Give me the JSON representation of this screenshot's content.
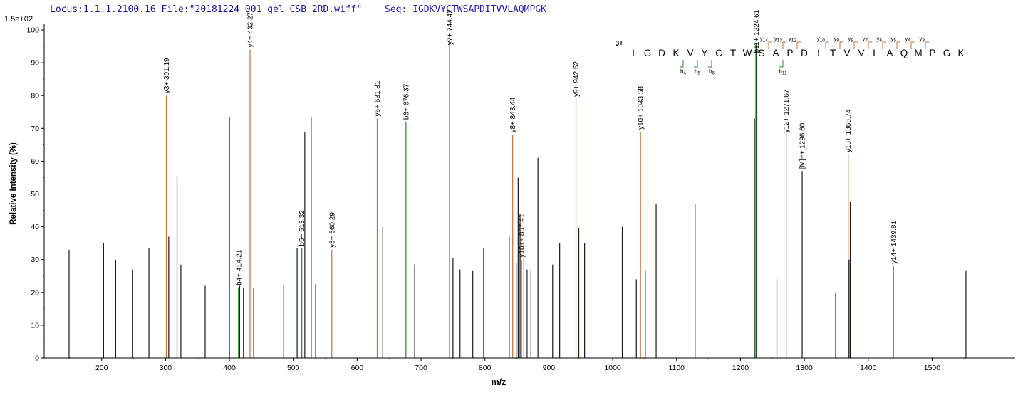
{
  "header": {
    "locus": "Locus:1.1.1.2100.16 File:\"20181224_001_gel_CSB_2RD.wiff\"",
    "seq_label": "Seq:",
    "sequence": "IGDKVYCTWSAPDITVVLAQMPGK"
  },
  "chart_data": {
    "type": "bar",
    "subtype": "ms2-fragmentation-spectrum",
    "title": "",
    "xlabel": "m/z",
    "ylabel": "Relative  Intensity (%)",
    "y_scale_label": "1.5e+02",
    "xlim": [
      110,
      1630
    ],
    "ylim": [
      0,
      100
    ],
    "grid": false,
    "x_ticks": [
      200,
      300,
      400,
      500,
      600,
      700,
      800,
      900,
      1000,
      1100,
      1200,
      1300,
      1400,
      1500
    ],
    "y_ticks": [
      0,
      10,
      20,
      30,
      40,
      50,
      60,
      70,
      80,
      90,
      100
    ],
    "colors": {
      "k": "#1a1a1a",
      "y": "#c96f2f",
      "b": "#1f8c1f",
      "b_dark": "#0c5c0c",
      "m": "#555555"
    },
    "peaks": [
      {
        "mz": 149,
        "intensity": 33,
        "color": "k"
      },
      {
        "mz": 203,
        "intensity": 35,
        "color": "k"
      },
      {
        "mz": 222,
        "intensity": 30,
        "color": "k"
      },
      {
        "mz": 248,
        "intensity": 27,
        "color": "k"
      },
      {
        "mz": 274,
        "intensity": 33.5,
        "color": "k"
      },
      {
        "mz": 301.19,
        "intensity": 80,
        "color": "y",
        "label": "y3+ 301.19"
      },
      {
        "mz": 305,
        "intensity": 37,
        "color": "k"
      },
      {
        "mz": 318,
        "intensity": 55.5,
        "color": "k"
      },
      {
        "mz": 324,
        "intensity": 28.5,
        "color": "k"
      },
      {
        "mz": 362,
        "intensity": 22,
        "color": "k"
      },
      {
        "mz": 400,
        "intensity": 73.5,
        "color": "k"
      },
      {
        "mz": 414.21,
        "intensity": 21.5,
        "color": "b",
        "label": "b4+ 414.21"
      },
      {
        "mz": 416,
        "intensity": 22,
        "color": "k"
      },
      {
        "mz": 422,
        "intensity": 21.5,
        "color": "k"
      },
      {
        "mz": 432.27,
        "intensity": 94,
        "color": "y",
        "label": "y4+ 432.27"
      },
      {
        "mz": 438,
        "intensity": 21.5,
        "color": "k"
      },
      {
        "mz": 485,
        "intensity": 22,
        "color": "k"
      },
      {
        "mz": 506,
        "intensity": 33.5,
        "color": "k"
      },
      {
        "mz": 513.32,
        "intensity": 33.5,
        "color": "b",
        "label": "b5+ 513.32"
      },
      {
        "mz": 518,
        "intensity": 69,
        "color": "k"
      },
      {
        "mz": 528,
        "intensity": 73.5,
        "color": "k"
      },
      {
        "mz": 535,
        "intensity": 22.5,
        "color": "k"
      },
      {
        "mz": 560.29,
        "intensity": 33,
        "color": "y",
        "label": "y5+ 560.29"
      },
      {
        "mz": 631.31,
        "intensity": 73,
        "color": "y",
        "label": "y6+ 631.31"
      },
      {
        "mz": 640,
        "intensity": 40,
        "color": "k"
      },
      {
        "mz": 676.37,
        "intensity": 72,
        "color": "b",
        "label": "b6+ 676.37"
      },
      {
        "mz": 690,
        "intensity": 28.5,
        "color": "k"
      },
      {
        "mz": 744.42,
        "intensity": 97,
        "color": "y",
        "label": "y7+ 744.42"
      },
      {
        "mz": 750,
        "intensity": 30.5,
        "color": "k"
      },
      {
        "mz": 761,
        "intensity": 27,
        "color": "k"
      },
      {
        "mz": 781,
        "intensity": 26.5,
        "color": "k"
      },
      {
        "mz": 798,
        "intensity": 33.5,
        "color": "k"
      },
      {
        "mz": 838,
        "intensity": 37,
        "color": "k"
      },
      {
        "mz": 843.44,
        "intensity": 68,
        "color": "y",
        "label": "y8+ 843.44"
      },
      {
        "mz": 849,
        "intensity": 29,
        "color": "k"
      },
      {
        "mz": 852,
        "intensity": 55,
        "color": "k"
      },
      {
        "mz": 855,
        "intensity": 44,
        "color": "k"
      },
      {
        "mz": 857.41,
        "intensity": 30,
        "color": "y",
        "label": "y16++ 857.41"
      },
      {
        "mz": 861,
        "intensity": 35.5,
        "color": "k"
      },
      {
        "mz": 866,
        "intensity": 27,
        "color": "k"
      },
      {
        "mz": 872,
        "intensity": 26.5,
        "color": "k"
      },
      {
        "mz": 883,
        "intensity": 61,
        "color": "k"
      },
      {
        "mz": 906,
        "intensity": 28.5,
        "color": "k"
      },
      {
        "mz": 917,
        "intensity": 35,
        "color": "k"
      },
      {
        "mz": 942.52,
        "intensity": 79,
        "color": "y",
        "label": "y9+ 942.52"
      },
      {
        "mz": 947,
        "intensity": 39.5,
        "color": "k"
      },
      {
        "mz": 956,
        "intensity": 35,
        "color": "k"
      },
      {
        "mz": 1015,
        "intensity": 40,
        "color": "k"
      },
      {
        "mz": 1037,
        "intensity": 24,
        "color": "k"
      },
      {
        "mz": 1043.58,
        "intensity": 69,
        "color": "y",
        "label": "y10+ 1043.58"
      },
      {
        "mz": 1051,
        "intensity": 26.5,
        "color": "k"
      },
      {
        "mz": 1068,
        "intensity": 47,
        "color": "k"
      },
      {
        "mz": 1129,
        "intensity": 47,
        "color": "k"
      },
      {
        "mz": 1222,
        "intensity": 73,
        "color": "k"
      },
      {
        "mz": 1224.61,
        "intensity": 96,
        "color": "b_dark",
        "label": "b11+ 1224.61",
        "label_color": "b",
        "lw": 2
      },
      {
        "mz": 1257,
        "intensity": 24,
        "color": "k"
      },
      {
        "mz": 1271.67,
        "intensity": 68,
        "color": "y",
        "label": "y12+ 1271.67"
      },
      {
        "mz": 1296.6,
        "intensity": 57,
        "color": "k",
        "label": "[M]++ 1296.60",
        "label_color": "m"
      },
      {
        "mz": 1349,
        "intensity": 20,
        "color": "k"
      },
      {
        "mz": 1368.74,
        "intensity": 62,
        "color": "y",
        "label": "y13+ 1368.74"
      },
      {
        "mz": 1370,
        "intensity": 30,
        "color": "k"
      },
      {
        "mz": 1372,
        "intensity": 47.5,
        "color": "k",
        "lw": 1.5
      },
      {
        "mz": 1439.81,
        "intensity": 28,
        "color": "y",
        "label": "y14+ 1439.81"
      },
      {
        "mz": 1553,
        "intensity": 26.5,
        "color": "k"
      }
    ],
    "sequence_panel": {
      "charge": "3+",
      "residues": "IGDKVYCTWSAPDITVVLAQMPGK",
      "y_ions": [
        {
          "label": "y14",
          "after": 10
        },
        {
          "label": "y13",
          "after": 11
        },
        {
          "label": "y12",
          "after": 12
        },
        {
          "label": "y10",
          "after": 14
        },
        {
          "label": "y9",
          "after": 15
        },
        {
          "label": "y8",
          "after": 16
        },
        {
          "label": "y7",
          "after": 17
        },
        {
          "label": "y6",
          "after": 18
        },
        {
          "label": "y5",
          "after": 19
        },
        {
          "label": "y4",
          "after": 20
        },
        {
          "label": "y3",
          "after": 21
        }
      ],
      "b_ions": [
        {
          "label": "b4",
          "after": 4
        },
        {
          "label": "b5",
          "after": 5
        },
        {
          "label": "b6",
          "after": 6
        },
        {
          "label": "b11",
          "after": 11
        }
      ]
    }
  }
}
